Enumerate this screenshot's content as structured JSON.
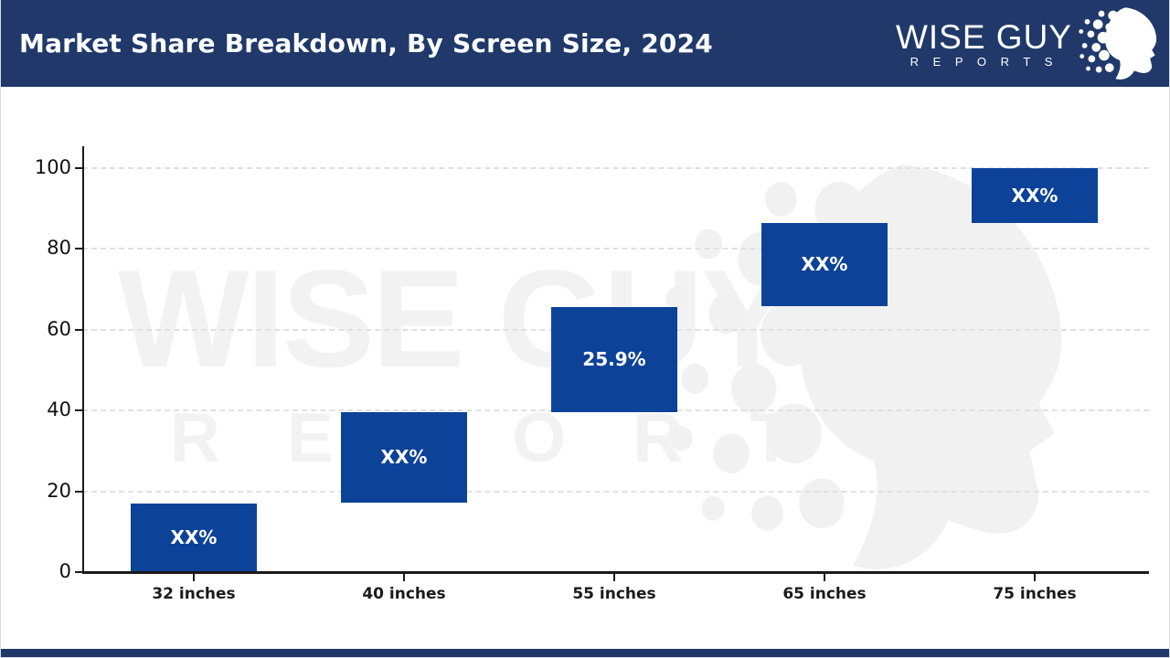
{
  "header": {
    "title": "Market Share Breakdown, By Screen Size, 2024",
    "logo": {
      "line1": "WISE GUY",
      "line2": "R E P O R T S"
    }
  },
  "watermark": {
    "line1": "WISE GUY",
    "line2": "R E P O R T S"
  },
  "colors": {
    "header_bg": "#20396a",
    "bar": "#0d4299",
    "bar_label": "#ffffff",
    "gridline": "#e0e0e0",
    "axis": "#1a1a1a",
    "watermark": "#f2f2f2"
  },
  "chart_data": {
    "type": "bar",
    "subtype": "waterfall",
    "title": "Market Share Breakdown, By Screen Size, 2024",
    "categories": [
      "32 inches",
      "40 inches",
      "55 inches",
      "65 inches",
      "75 inches"
    ],
    "bars": [
      {
        "category": "32 inches",
        "start": 0,
        "end": 17,
        "label": "XX%"
      },
      {
        "category": "40 inches",
        "start": 17.3,
        "end": 39.7,
        "label": "XX%"
      },
      {
        "category": "55 inches",
        "start": 39.7,
        "end": 65.6,
        "label": "25.9%"
      },
      {
        "category": "65 inches",
        "start": 65.9,
        "end": 86.4,
        "label": "XX%"
      },
      {
        "category": "75 inches",
        "start": 86.4,
        "end": 100,
        "label": "XX%"
      }
    ],
    "xlabel": "",
    "ylabel": "",
    "ylim": [
      0,
      100
    ],
    "yticks": [
      0,
      20,
      40,
      60,
      80,
      100
    ],
    "grid": "horizontal-dashed",
    "legend": "none"
  }
}
